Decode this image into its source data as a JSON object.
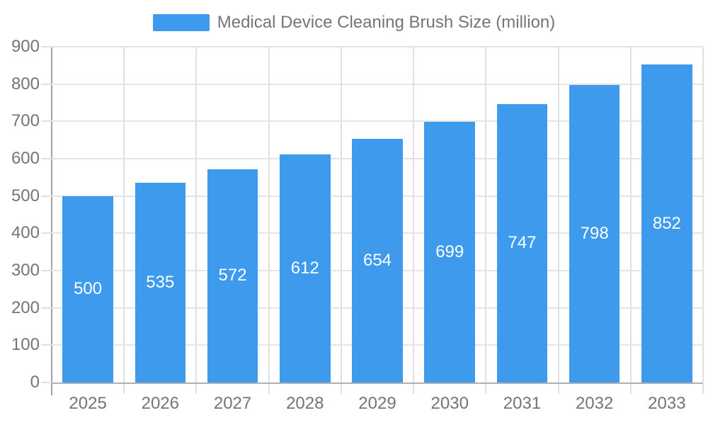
{
  "legend": {
    "position": "top",
    "items": [
      {
        "label": "Medical Device Cleaning Brush Size (million)",
        "color": "#3D9AEC"
      }
    ]
  },
  "colors": {
    "bar": "#3D9AEC",
    "bar_value_label": "#FFFFFF",
    "axis_label": "#757575",
    "gridline": "#E4E4E4",
    "y_axis_line": "#A0A0A0",
    "x_axis_line": "#B0B0B0",
    "background": "#FFFFFF"
  },
  "chart_data": {
    "type": "bar",
    "title": "Medical Device Cleaning Brush Size (million)",
    "series_name": "Medical Device Cleaning Brush Size (million)",
    "categories": [
      "2025",
      "2026",
      "2027",
      "2028",
      "2029",
      "2030",
      "2031",
      "2032",
      "2033"
    ],
    "values": [
      500,
      535,
      572,
      612,
      654,
      699,
      747,
      798,
      852
    ],
    "xlabel": "",
    "ylabel": "",
    "ylim": [
      0,
      900
    ],
    "y_tick_step": 100,
    "y_tick_labels": [
      "0",
      "100",
      "200",
      "300",
      "400",
      "500",
      "600",
      "700",
      "800",
      "900"
    ],
    "grid": true,
    "legend_position": "top",
    "value_label_position": "inside-center"
  }
}
